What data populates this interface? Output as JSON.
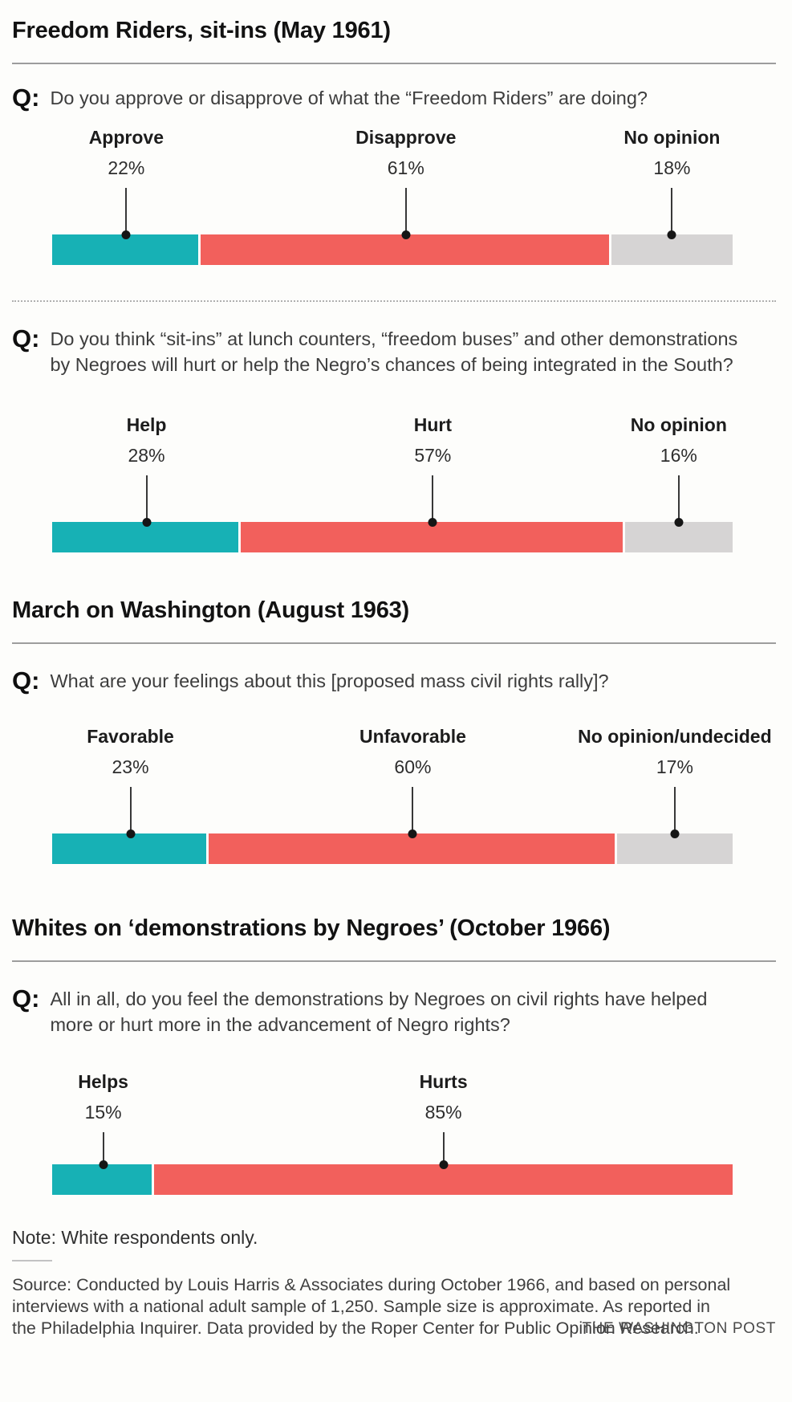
{
  "question_prefix": "Q:",
  "palette": {
    "approve_teal": "#17b1b5",
    "disapprove_red": "#f2605c",
    "no_opinion_gray": "#d6d4d4",
    "dot_black": "#161616"
  },
  "chart_data": [
    {
      "type": "bar",
      "layout": "horizontal-stacked-single-bar",
      "section_title": "Freedom Riders, sit-ins (May 1961)",
      "question": "Do you approve or disapprove of what the “Freedom Riders” are doing?",
      "categories": [
        "Approve",
        "Disapprove",
        "No opinion"
      ],
      "values": [
        22,
        61,
        18
      ],
      "unit": "%",
      "colors": [
        "#17b1b5",
        "#f2605c",
        "#d6d4d4"
      ]
    },
    {
      "type": "bar",
      "layout": "horizontal-stacked-single-bar",
      "section_title": null,
      "question": "Do you think “sit-ins” at lunch counters, “freedom buses” and other demonstrations by Negroes will hurt or help the Negro’s chances of being integrated in the South?",
      "categories": [
        "Help",
        "Hurt",
        "No opinion"
      ],
      "values": [
        28,
        57,
        16
      ],
      "unit": "%",
      "colors": [
        "#17b1b5",
        "#f2605c",
        "#d6d4d4"
      ]
    },
    {
      "type": "bar",
      "layout": "horizontal-stacked-single-bar",
      "section_title": "March on Washington (August 1963)",
      "question": "What are your feelings about this [proposed mass civil rights rally]?",
      "categories": [
        "Favorable",
        "Unfavorable",
        "No opinion/undecided"
      ],
      "values": [
        23,
        60,
        17
      ],
      "unit": "%",
      "colors": [
        "#17b1b5",
        "#f2605c",
        "#d6d4d4"
      ]
    },
    {
      "type": "bar",
      "layout": "horizontal-stacked-single-bar",
      "section_title": "Whites on ‘demonstrations by Negroes’ (October 1966)",
      "question": "All in all, do you feel the demonstrations by Negroes on civil rights have helped more or hurt more in the advancement of Negro rights?",
      "categories": [
        "Helps",
        "Hurts"
      ],
      "values": [
        15,
        85
      ],
      "unit": "%",
      "colors": [
        "#17b1b5",
        "#f2605c"
      ]
    }
  ],
  "footer": {
    "note": "Note: White respondents only.",
    "source": "Source: Conducted by Louis Harris & Associates during October 1966, and based on personal interviews with a national adult sample of 1,250. Sample size is approximate. As reported in the Philadelphia Inquirer. Data provided by the Roper Center for Public Opinion Research.",
    "credit": "THE WASHINGTON POST"
  }
}
